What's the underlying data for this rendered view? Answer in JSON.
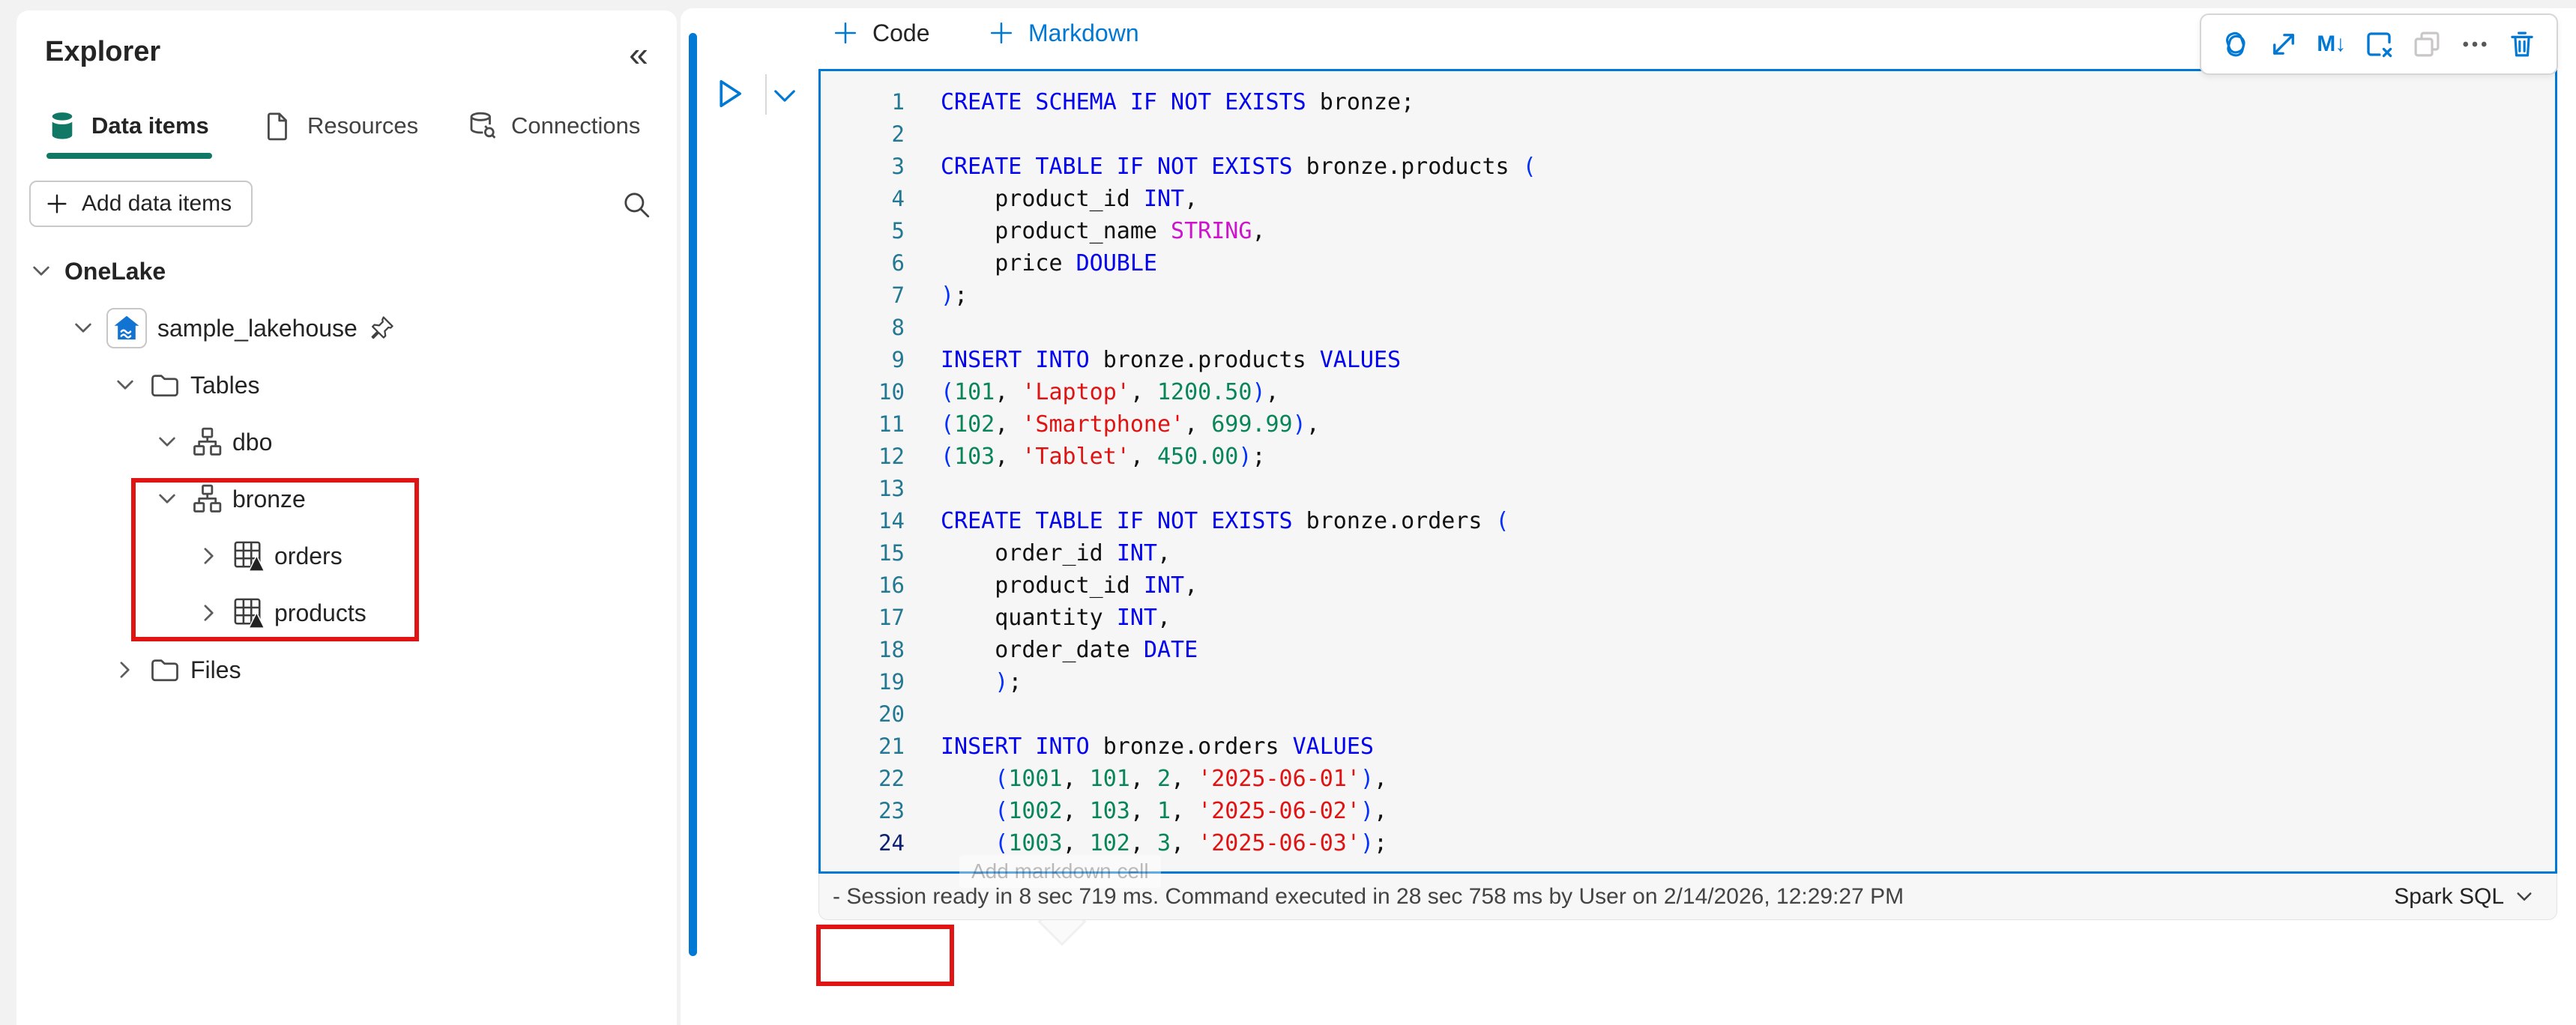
{
  "explorer": {
    "title": "Explorer",
    "collapse_icon": "«",
    "tabs": [
      {
        "label": "Data items",
        "icon": "database",
        "active": true
      },
      {
        "label": "Resources",
        "icon": "document",
        "active": false
      },
      {
        "label": "Connections",
        "icon": "plug-database",
        "active": false
      }
    ],
    "add_button": {
      "label": "Add data items"
    },
    "tree": {
      "items": [
        {
          "name": "onelake",
          "label": "OneLake",
          "level": 0,
          "chevron": "down",
          "icon": null,
          "bold": true
        },
        {
          "name": "sample-lakehouse",
          "label": "sample_lakehouse",
          "level": 1,
          "chevron": "down",
          "icon": "lakehouse",
          "pin": true
        },
        {
          "name": "tables",
          "label": "Tables",
          "level": 2,
          "chevron": "down",
          "icon": "folder"
        },
        {
          "name": "dbo",
          "label": "dbo",
          "level": 3,
          "chevron": "down",
          "icon": "schema"
        },
        {
          "name": "bronze",
          "label": "bronze",
          "level": 3,
          "chevron": "down",
          "icon": "schema"
        },
        {
          "name": "orders",
          "label": "orders",
          "level": 4,
          "chevron": "right",
          "icon": "table"
        },
        {
          "name": "products",
          "label": "products",
          "level": 4,
          "chevron": "right",
          "icon": "table"
        },
        {
          "name": "files",
          "label": "Files",
          "level": 2,
          "chevron": "right",
          "icon": "folder"
        }
      ]
    }
  },
  "notebook": {
    "cell": {
      "toolbar": [
        {
          "name": "copilot"
        },
        {
          "name": "expand-cell"
        },
        {
          "name": "convert-to-markdown"
        },
        {
          "name": "clear-cell-outputs"
        },
        {
          "name": "duplicate-cell",
          "disabled": true
        },
        {
          "name": "more-options"
        },
        {
          "name": "delete-cell"
        }
      ],
      "code": {
        "lines": [
          [
            [
              "k",
              "CREATE SCHEMA IF NOT EXISTS"
            ],
            [
              "d",
              " bronze;"
            ]
          ],
          [],
          [
            [
              "k",
              "CREATE TABLE IF NOT EXISTS"
            ],
            [
              "d",
              " bronze.products "
            ],
            [
              "p",
              "("
            ]
          ],
          [
            [
              "d",
              "    product_id "
            ],
            [
              "k",
              "INT"
            ],
            [
              "d",
              ","
            ]
          ],
          [
            [
              "d",
              "    product_name "
            ],
            [
              "t",
              "STRING"
            ],
            [
              "d",
              ","
            ]
          ],
          [
            [
              "d",
              "    price "
            ],
            [
              "k",
              "DOUBLE"
            ]
          ],
          [
            [
              "p",
              ")"
            ],
            [
              "d",
              ";"
            ]
          ],
          [],
          [
            [
              "k",
              "INSERT INTO"
            ],
            [
              "d",
              " bronze.products "
            ],
            [
              "k",
              "VALUES"
            ]
          ],
          [
            [
              "p",
              "("
            ],
            [
              "n",
              "101"
            ],
            [
              "d",
              ", "
            ],
            [
              "s",
              "'Laptop'"
            ],
            [
              "d",
              ", "
            ],
            [
              "n",
              "1200.50"
            ],
            [
              "p",
              ")"
            ],
            [
              "d",
              ","
            ]
          ],
          [
            [
              "p",
              "("
            ],
            [
              "n",
              "102"
            ],
            [
              "d",
              ", "
            ],
            [
              "s",
              "'Smartphone'"
            ],
            [
              "d",
              ", "
            ],
            [
              "n",
              "699.99"
            ],
            [
              "p",
              ")"
            ],
            [
              "d",
              ","
            ]
          ],
          [
            [
              "p",
              "("
            ],
            [
              "n",
              "103"
            ],
            [
              "d",
              ", "
            ],
            [
              "s",
              "'Tablet'"
            ],
            [
              "d",
              ", "
            ],
            [
              "n",
              "450.00"
            ],
            [
              "p",
              ")"
            ],
            [
              "d",
              ";"
            ]
          ],
          [],
          [
            [
              "k",
              "CREATE TABLE IF NOT EXISTS"
            ],
            [
              "d",
              " bronze.orders "
            ],
            [
              "p",
              "("
            ]
          ],
          [
            [
              "d",
              "    order_id "
            ],
            [
              "k",
              "INT"
            ],
            [
              "d",
              ","
            ]
          ],
          [
            [
              "d",
              "    product_id "
            ],
            [
              "k",
              "INT"
            ],
            [
              "d",
              ","
            ]
          ],
          [
            [
              "d",
              "    quantity "
            ],
            [
              "k",
              "INT"
            ],
            [
              "d",
              ","
            ]
          ],
          [
            [
              "d",
              "    order_date "
            ],
            [
              "k",
              "DATE"
            ]
          ],
          [
            [
              "d",
              "    "
            ],
            [
              "p",
              ")"
            ],
            [
              "d",
              ";"
            ]
          ],
          [],
          [
            [
              "k",
              "INSERT INTO"
            ],
            [
              "d",
              " bronze.orders "
            ],
            [
              "k",
              "VALUES"
            ]
          ],
          [
            [
              "d",
              "    "
            ],
            [
              "p",
              "("
            ],
            [
              "n",
              "1001"
            ],
            [
              "d",
              ", "
            ],
            [
              "n",
              "101"
            ],
            [
              "d",
              ", "
            ],
            [
              "n",
              "2"
            ],
            [
              "d",
              ", "
            ],
            [
              "s",
              "'2025-06-01'"
            ],
            [
              "p",
              ")"
            ],
            [
              "d",
              ","
            ]
          ],
          [
            [
              "d",
              "    "
            ],
            [
              "p",
              "("
            ],
            [
              "n",
              "1002"
            ],
            [
              "d",
              ", "
            ],
            [
              "n",
              "103"
            ],
            [
              "d",
              ", "
            ],
            [
              "n",
              "1"
            ],
            [
              "d",
              ", "
            ],
            [
              "s",
              "'2025-06-02'"
            ],
            [
              "p",
              ")"
            ],
            [
              "d",
              ","
            ]
          ],
          [
            [
              "d",
              "    "
            ],
            [
              "p",
              "("
            ],
            [
              "n",
              "1003"
            ],
            [
              "d",
              ", "
            ],
            [
              "n",
              "102"
            ],
            [
              "d",
              ", "
            ],
            [
              "n",
              "3"
            ],
            [
              "d",
              ", "
            ],
            [
              "s",
              "'2025-06-03'"
            ],
            [
              "p",
              ")"
            ],
            [
              "d",
              ";"
            ]
          ]
        ],
        "active_line": 24
      },
      "status": {
        "text": "- Session ready in 8 sec 719 ms. Command executed in 28 sec 758 ms by User on 2/14/2026, 12:29:27 PM",
        "language": "Spark SQL"
      },
      "ghost_label": "Add markdown cell"
    },
    "add_code_label": "Code",
    "add_markdown_label": "Markdown"
  },
  "colors": {
    "accent": "#0078D4",
    "tab_active": "#117865",
    "highlight": "#E11414",
    "syntax": {
      "k": "#0101EE",
      "t": "#CC14CC",
      "n": "#098658",
      "s": "#E01212",
      "p": "#0431FA",
      "d": "#111111",
      "ln": "#237893",
      "ln_active": "#0B216F"
    }
  }
}
